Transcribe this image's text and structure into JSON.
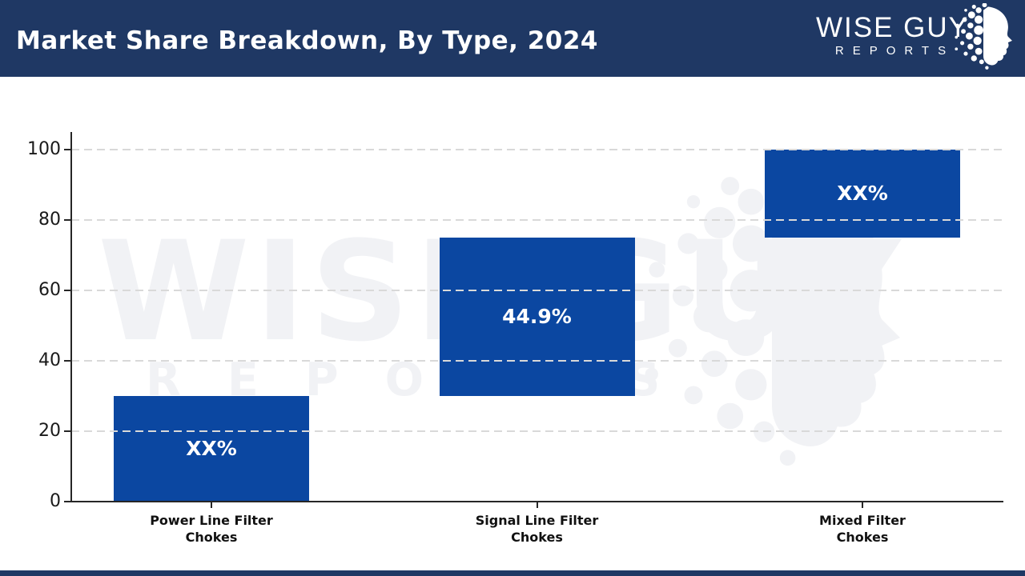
{
  "header": {
    "title": "Market Share Breakdown, By Type, 2024",
    "logo": {
      "brand": "WISE GUY",
      "brand_sub": "REPORTS"
    },
    "colors": {
      "background": "#1f3864",
      "text": "#ffffff"
    }
  },
  "watermark": {
    "brand": "WISE GUY",
    "brand_sub": "REPORTS"
  },
  "chart_data": {
    "type": "bar",
    "subtype": "floating-waterfall",
    "title": "Market Share Breakdown, By Type, 2024",
    "categories": [
      "Power Line Filter\nChokes",
      "Signal Line Filter\nChokes",
      "Mixed Filter\nChokes"
    ],
    "segments": [
      {
        "category": "Power Line Filter Chokes",
        "start": 0,
        "end": 30,
        "label": "XX%"
      },
      {
        "category": "Signal Line Filter Chokes",
        "start": 30,
        "end": 74.9,
        "label": "44.9%"
      },
      {
        "category": "Mixed Filter Chokes",
        "start": 74.9,
        "end": 100,
        "label": "XX%"
      }
    ],
    "yticks": [
      0,
      20,
      40,
      60,
      80,
      100
    ],
    "ylim": [
      0,
      105
    ],
    "xlabel": "",
    "ylabel": "",
    "grid": {
      "orientation": "horizontal",
      "style": "dashed",
      "color": "#d9d9d9"
    },
    "legend": "none",
    "colors": {
      "bar": "#0b47a1",
      "bar_label": "#ffffff",
      "axis": "#262626"
    }
  }
}
